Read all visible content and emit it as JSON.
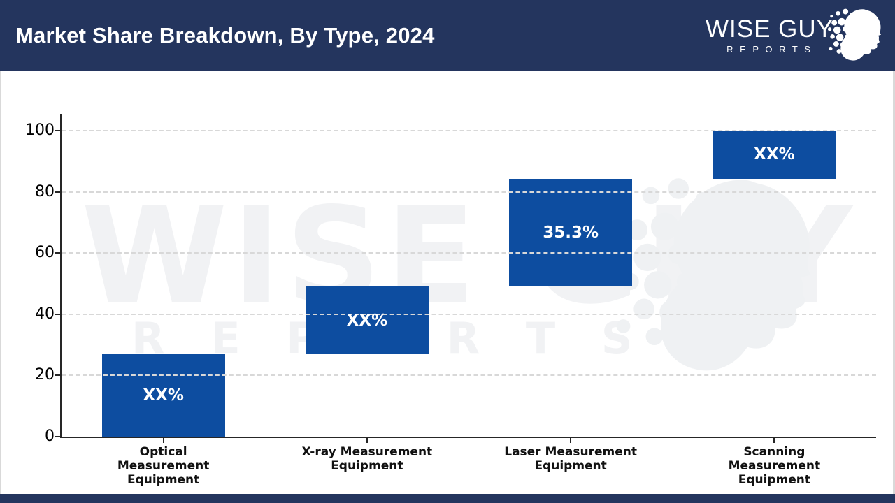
{
  "header": {
    "title": "Market Share Breakdown, By Type, 2024",
    "bg_color": "#24355e",
    "logo": {
      "name_line": "WISE GUY",
      "reports_line": "R E P O R T S"
    }
  },
  "watermark": {
    "name_line": "WISE GUY",
    "reports_line": "R E P O R T S"
  },
  "footer": {
    "bg_color": "#24355e"
  },
  "chart_data": {
    "type": "bar",
    "variant": "waterfall",
    "title": "Market Share Breakdown, By Type, 2024",
    "categories": [
      "Optical\nMeasurement\nEquipment",
      "X-ray Measurement\nEquipment",
      "Laser Measurement\nEquipment",
      "Scanning\nMeasurement\nEquipment"
    ],
    "bars": [
      {
        "label": "XX%",
        "start": 0,
        "end": 27
      },
      {
        "label": "XX%",
        "start": 27,
        "end": 49
      },
      {
        "label": "35.3%",
        "start": 49,
        "end": 84.3
      },
      {
        "label": "XX%",
        "start": 84.3,
        "end": 100
      }
    ],
    "ylim": [
      0,
      100
    ],
    "yticks": [
      0,
      20,
      40,
      60,
      80,
      100
    ],
    "grid": {
      "axis": "y",
      "style": "dashed",
      "color": "#d8d8d8",
      "drawn_over_bars": true
    },
    "bar_color": "#0d4da0",
    "bar_label_color": "#ffffff",
    "xlabel": "",
    "ylabel": ""
  }
}
